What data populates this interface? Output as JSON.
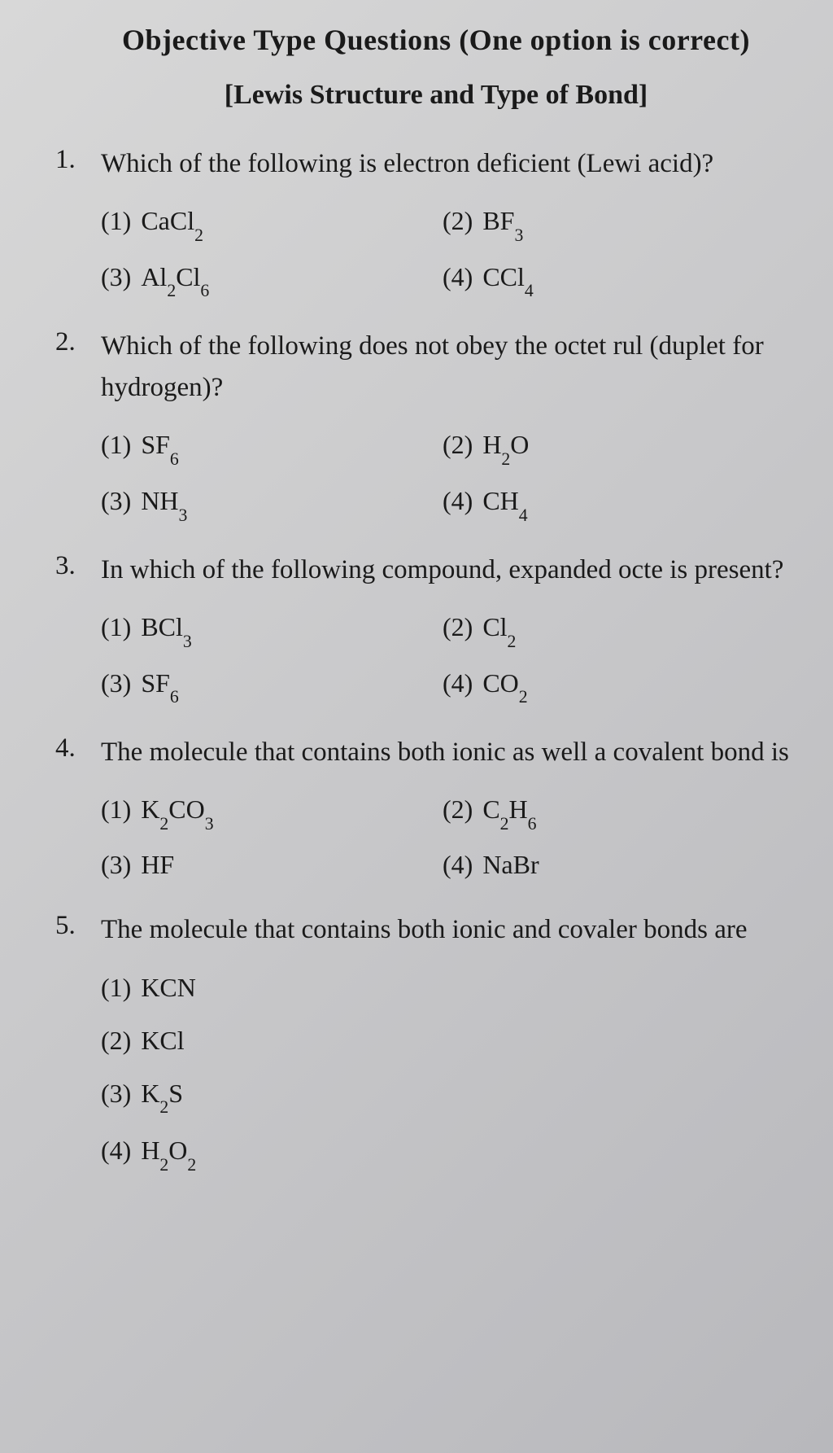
{
  "page_title": "Objective Type Questions (One option is correct)",
  "subtitle": "[Lewis Structure and Type of Bond]",
  "background_color": "#cdcdd0",
  "text_color": "#1a1a1a",
  "title_fontsize": 36,
  "subtitle_fontsize": 34,
  "question_fontsize": 33,
  "option_fontsize": 32,
  "questions": [
    {
      "number": "1.",
      "text": "Which of the following is electron deficient (Lewi acid)?",
      "layout": "two-col",
      "options": [
        {
          "num": "(1)",
          "formula": "CaCl",
          "sub": "2"
        },
        {
          "num": "(2)",
          "formula": "BF",
          "sub": "3"
        },
        {
          "num": "(3)",
          "formula": "Al",
          "sub": "2",
          "formula2": "Cl",
          "sub2": "6"
        },
        {
          "num": "(4)",
          "formula": "CCl",
          "sub": "4"
        }
      ]
    },
    {
      "number": "2.",
      "text": "Which of the following does not obey the octet rul (duplet for hydrogen)?",
      "layout": "two-col",
      "options": [
        {
          "num": "(1)",
          "formula": "SF",
          "sub": "6"
        },
        {
          "num": "(2)",
          "formula": "H",
          "sub": "2",
          "formula2": "O",
          "sub2": ""
        },
        {
          "num": "(3)",
          "formula": "NH",
          "sub": "3"
        },
        {
          "num": "(4)",
          "formula": "CH",
          "sub": "4"
        }
      ]
    },
    {
      "number": "3.",
      "text": "In which of the following compound, expanded octe is present?",
      "layout": "two-col",
      "options": [
        {
          "num": "(1)",
          "formula": "BCl",
          "sub": "3"
        },
        {
          "num": "(2)",
          "formula": "Cl",
          "sub": "2"
        },
        {
          "num": "(3)",
          "formula": "SF",
          "sub": "6"
        },
        {
          "num": "(4)",
          "formula": "CO",
          "sub": "2"
        }
      ]
    },
    {
      "number": "4.",
      "text": "The molecule that contains both ionic as well a covalent bond is",
      "layout": "two-col",
      "options": [
        {
          "num": "(1)",
          "formula": "K",
          "sub": "2",
          "formula2": "CO",
          "sub2": "3"
        },
        {
          "num": "(2)",
          "formula": "C",
          "sub": "2",
          "formula2": "H",
          "sub2": "6"
        },
        {
          "num": "(3)",
          "formula": "HF",
          "sub": ""
        },
        {
          "num": "(4)",
          "formula": "NaBr",
          "sub": ""
        }
      ]
    },
    {
      "number": "5.",
      "text": "The molecule that contains both ionic and covaler bonds are",
      "layout": "single-col",
      "options": [
        {
          "num": "(1)",
          "formula": "KCN",
          "sub": ""
        },
        {
          "num": "(2)",
          "formula": "KCl",
          "sub": ""
        },
        {
          "num": "(3)",
          "formula": "K",
          "sub": "2",
          "formula2": "S",
          "sub2": ""
        },
        {
          "num": "(4)",
          "formula": "H",
          "sub": "2",
          "formula2": "O",
          "sub2": "2"
        }
      ]
    }
  ]
}
